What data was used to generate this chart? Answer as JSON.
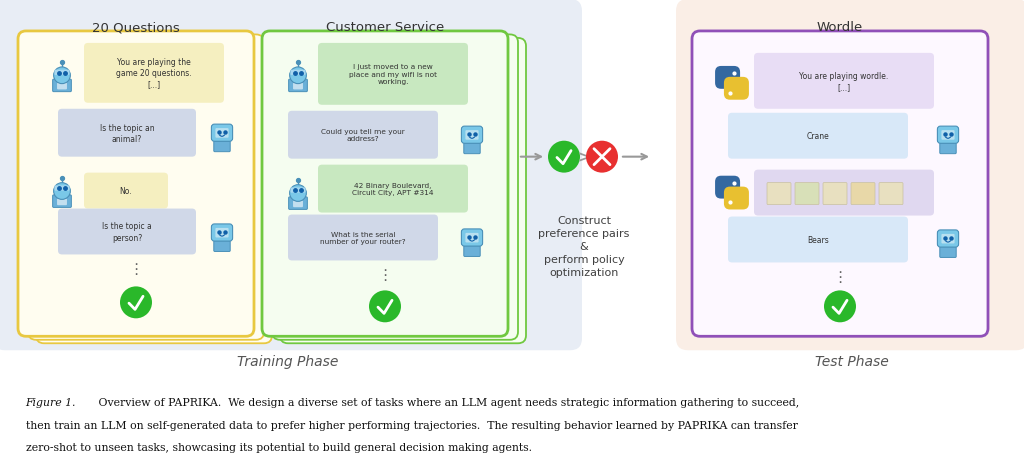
{
  "fig_width": 10.24,
  "fig_height": 4.6,
  "dpi": 100,
  "background_color": "#ffffff",
  "training_bg": "#e8edf5",
  "training_label": "Training Phase",
  "test_bg": "#faeee6",
  "test_label": "Test Phase",
  "twenty_q_title": "20 Questions",
  "twenty_q_border": "#e8c840",
  "twenty_q_bg": "#fffdf0",
  "customer_title": "Customer Service",
  "customer_border": "#70c840",
  "customer_bg": "#f5fdf0",
  "wordle_title": "Wordle",
  "wordle_border": "#9050b8",
  "wordle_bg": "#fdf8ff",
  "arrow_color": "#999999",
  "green_check_color": "#2ab82a",
  "red_x_color": "#e83030",
  "construct_text": "Construct\npreference pairs\n&\nperform policy\noptimization",
  "msg_bg_yellow": "#f5efc0",
  "msg_bg_blue_light": "#d8e8f8",
  "msg_bg_green_light": "#c8e8c0",
  "msg_bg_gray": "#d0d8e8",
  "msg_bg_lavender": "#e8ddf5",
  "msg_bg_lavender2": "#e0d8f0",
  "wordle_sq1": "#e8e0c0",
  "wordle_sq2": "#d8e0b8",
  "wordle_sq3": "#e8e0c0",
  "wordle_sq4": "#e8d8a8",
  "wordle_sq5": "#e8e0c0",
  "caption_italic": "Figure 1.",
  "caption_normal": " Overview of P",
  "caption_sc": "APRIKA",
  "caption_rest1": ". We design a diverse set of tasks where an LLM agent needs strategic information gathering to succeed,",
  "caption_line2": "then train an LLM on self-generated data to prefer higher performing trajectories. The resulting behavior learned by P",
  "caption_sc2": "APRIKA",
  "caption_rest2": " can transfer",
  "caption_line3": "zero-shot to unseen tasks, showcasing its potential to build general decision making agents."
}
